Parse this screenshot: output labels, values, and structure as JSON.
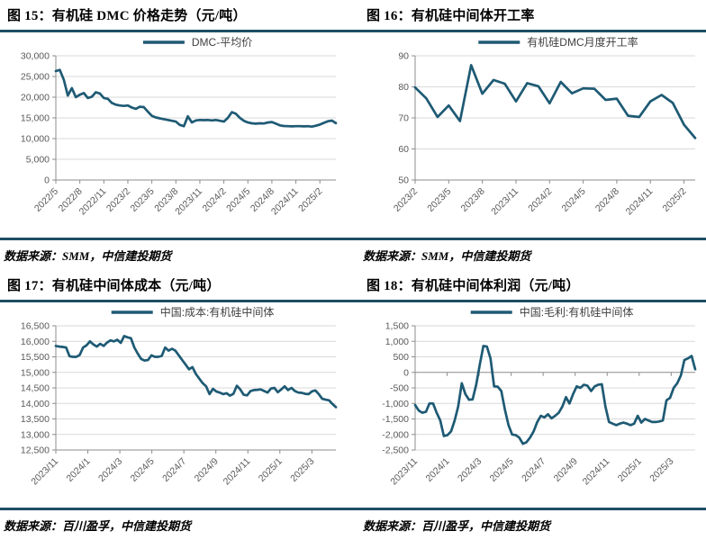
{
  "theme": {
    "line_color": "#1e5a74",
    "rule_color": "#1c4e63",
    "grid_color": "#d9d9d9",
    "axis_color": "#8c8c8c",
    "tick_text_color": "#595959",
    "legend_text_color": "#404040"
  },
  "figures": [
    {
      "header": "图 15：有机硅 DMC 价格走势（元/吨）",
      "source": "数据来源：SMM，中信建投期货"
    },
    {
      "header": "图 16：有机硅中间体开工率",
      "source": "数据来源：SMM，中信建投期货"
    },
    {
      "header": "图 17：有机硅中间体成本（元/吨）",
      "source": "数据来源：百川盈孚，中信建投期货"
    },
    {
      "header": "图 18：有机硅中间体利润（元/吨）",
      "source": "数据来源：百川盈孚，中信建投期货"
    }
  ],
  "chart_data": [
    {
      "type": "line",
      "title": "图 15：有机硅 DMC 价格走势（元/吨）",
      "legend": "DMC-平均价",
      "ylim": [
        0,
        30000
      ],
      "y_step": 5000,
      "comma": true,
      "grid": true,
      "legend_position": "top-center",
      "x_span_months": 35,
      "x_ticks": [
        {
          "month": 0,
          "label": "2022/5"
        },
        {
          "month": 3,
          "label": "2022/8"
        },
        {
          "month": 6,
          "label": "2022/11"
        },
        {
          "month": 9,
          "label": "2023/2"
        },
        {
          "month": 12,
          "label": "2023/5"
        },
        {
          "month": 15,
          "label": "2023/8"
        },
        {
          "month": 18,
          "label": "2023/11"
        },
        {
          "month": 21,
          "label": "2024/2"
        },
        {
          "month": 24,
          "label": "2024/5"
        },
        {
          "month": 27,
          "label": "2024/8"
        },
        {
          "month": 30,
          "label": "2024/11"
        },
        {
          "month": 33,
          "label": "2025/2"
        }
      ],
      "values": [
        26300,
        26600,
        24200,
        20400,
        22200,
        20000,
        20600,
        21000,
        19800,
        20100,
        21200,
        20900,
        19800,
        19600,
        18600,
        18200,
        18000,
        17900,
        18000,
        17500,
        17200,
        17700,
        17600,
        16500,
        15500,
        15100,
        14900,
        14700,
        14500,
        14300,
        14100,
        13300,
        13000,
        15400,
        13900,
        14400,
        14500,
        14450,
        14500,
        14400,
        14500,
        14300,
        14100,
        15000,
        16400,
        16000,
        15000,
        14300,
        13900,
        13700,
        13600,
        13700,
        13650,
        13900,
        14000,
        13600,
        13200,
        13050,
        13000,
        12950,
        13000,
        13000,
        12950,
        13000,
        12900,
        13100,
        13400,
        13800,
        14200,
        14350,
        13750
      ]
    },
    {
      "type": "line",
      "title": "图 16：有机硅中间体开工率",
      "legend": "有机硅DMC月度开工率",
      "ylim": [
        50,
        90
      ],
      "y_step": 10,
      "comma": false,
      "grid": true,
      "legend_position": "top-center",
      "x_span_months": 25,
      "x_ticks": [
        {
          "month": 0,
          "label": "2023/2"
        },
        {
          "month": 3,
          "label": "2023/5"
        },
        {
          "month": 6,
          "label": "2023/8"
        },
        {
          "month": 9,
          "label": "2023/11"
        },
        {
          "month": 12,
          "label": "2024/2"
        },
        {
          "month": 15,
          "label": "2024/5"
        },
        {
          "month": 18,
          "label": "2024/8"
        },
        {
          "month": 21,
          "label": "2024/11"
        },
        {
          "month": 24,
          "label": "2025/2"
        }
      ],
      "values": [
        79.8,
        76.3,
        70.3,
        74.0,
        69.0,
        87.0,
        77.8,
        82.2,
        81.0,
        75.3,
        81.2,
        80.2,
        74.7,
        81.6,
        77.9,
        79.5,
        79.4,
        75.8,
        76.2,
        70.7,
        70.3,
        75.3,
        77.4,
        74.8,
        67.8,
        63.5
      ]
    },
    {
      "type": "line",
      "title": "图 17：有机硅中间体成本（元/吨）",
      "legend": "中国:成本:有机硅中间体",
      "ylim": [
        12500,
        16500
      ],
      "y_step": 500,
      "comma": true,
      "grid": true,
      "legend_position": "top-center",
      "x_span_months": 17.5,
      "x_ticks": [
        {
          "month": 0,
          "label": "2023/11"
        },
        {
          "month": 2,
          "label": "2024/1"
        },
        {
          "month": 4,
          "label": "2024/3"
        },
        {
          "month": 6,
          "label": "2024/5"
        },
        {
          "month": 8,
          "label": "2024/7"
        },
        {
          "month": 10,
          "label": "2024/9"
        },
        {
          "month": 12,
          "label": "2024/11"
        },
        {
          "month": 14,
          "label": "2025/1"
        },
        {
          "month": 16,
          "label": "2025/3"
        }
      ],
      "values": [
        15850,
        15830,
        15820,
        15800,
        15520,
        15500,
        15500,
        15560,
        15800,
        15870,
        16000,
        15900,
        15830,
        15920,
        15850,
        15960,
        16030,
        16000,
        16050,
        15950,
        16170,
        16130,
        16100,
        15800,
        15600,
        15430,
        15380,
        15400,
        15550,
        15500,
        15500,
        15530,
        15800,
        15700,
        15760,
        15700,
        15550,
        15400,
        15250,
        15100,
        15170,
        14950,
        14800,
        14650,
        14550,
        14300,
        14470,
        14380,
        14350,
        14300,
        14330,
        14250,
        14310,
        14570,
        14450,
        14280,
        14260,
        14400,
        14430,
        14440,
        14450,
        14400,
        14350,
        14480,
        14500,
        14360,
        14450,
        14550,
        14430,
        14500,
        14400,
        14350,
        14340,
        14310,
        14300,
        14390,
        14420,
        14300,
        14150,
        14120,
        14100,
        13980,
        13880
      ]
    },
    {
      "type": "line",
      "title": "图 18：有机硅中间体利润（元/吨）",
      "legend": "中国:毛利:有机硅中间体",
      "ylim": [
        -2500,
        1500
      ],
      "y_step": 500,
      "comma": true,
      "grid": true,
      "legend_position": "top-center",
      "x_span_months": 17.5,
      "x_ticks": [
        {
          "month": 0,
          "label": "2023/11"
        },
        {
          "month": 2,
          "label": "2024/1"
        },
        {
          "month": 4,
          "label": "2024/3"
        },
        {
          "month": 6,
          "label": "2024/5"
        },
        {
          "month": 8,
          "label": "2024/7"
        },
        {
          "month": 10,
          "label": "2024/9"
        },
        {
          "month": 12,
          "label": "2024/11"
        },
        {
          "month": 14,
          "label": "2025/1"
        },
        {
          "month": 16,
          "label": "2025/3"
        }
      ],
      "values": [
        -1050,
        -1230,
        -1300,
        -1270,
        -1000,
        -1000,
        -1300,
        -1550,
        -2050,
        -2020,
        -1900,
        -1550,
        -1100,
        -350,
        -700,
        -880,
        -870,
        -400,
        250,
        850,
        830,
        450,
        -450,
        -460,
        -600,
        -1200,
        -1700,
        -2000,
        -2020,
        -2100,
        -2300,
        -2250,
        -2100,
        -1900,
        -1600,
        -1400,
        -1450,
        -1350,
        -1480,
        -1400,
        -1300,
        -1100,
        -800,
        -1000,
        -700,
        -450,
        -500,
        -400,
        -430,
        -600,
        -450,
        -400,
        -380,
        -1100,
        -1600,
        -1650,
        -1700,
        -1650,
        -1620,
        -1650,
        -1700,
        -1650,
        -1400,
        -1620,
        -1500,
        -1550,
        -1600,
        -1600,
        -1580,
        -1550,
        -900,
        -820,
        -500,
        -350,
        -100,
        400,
        450,
        530,
        100
      ]
    }
  ]
}
